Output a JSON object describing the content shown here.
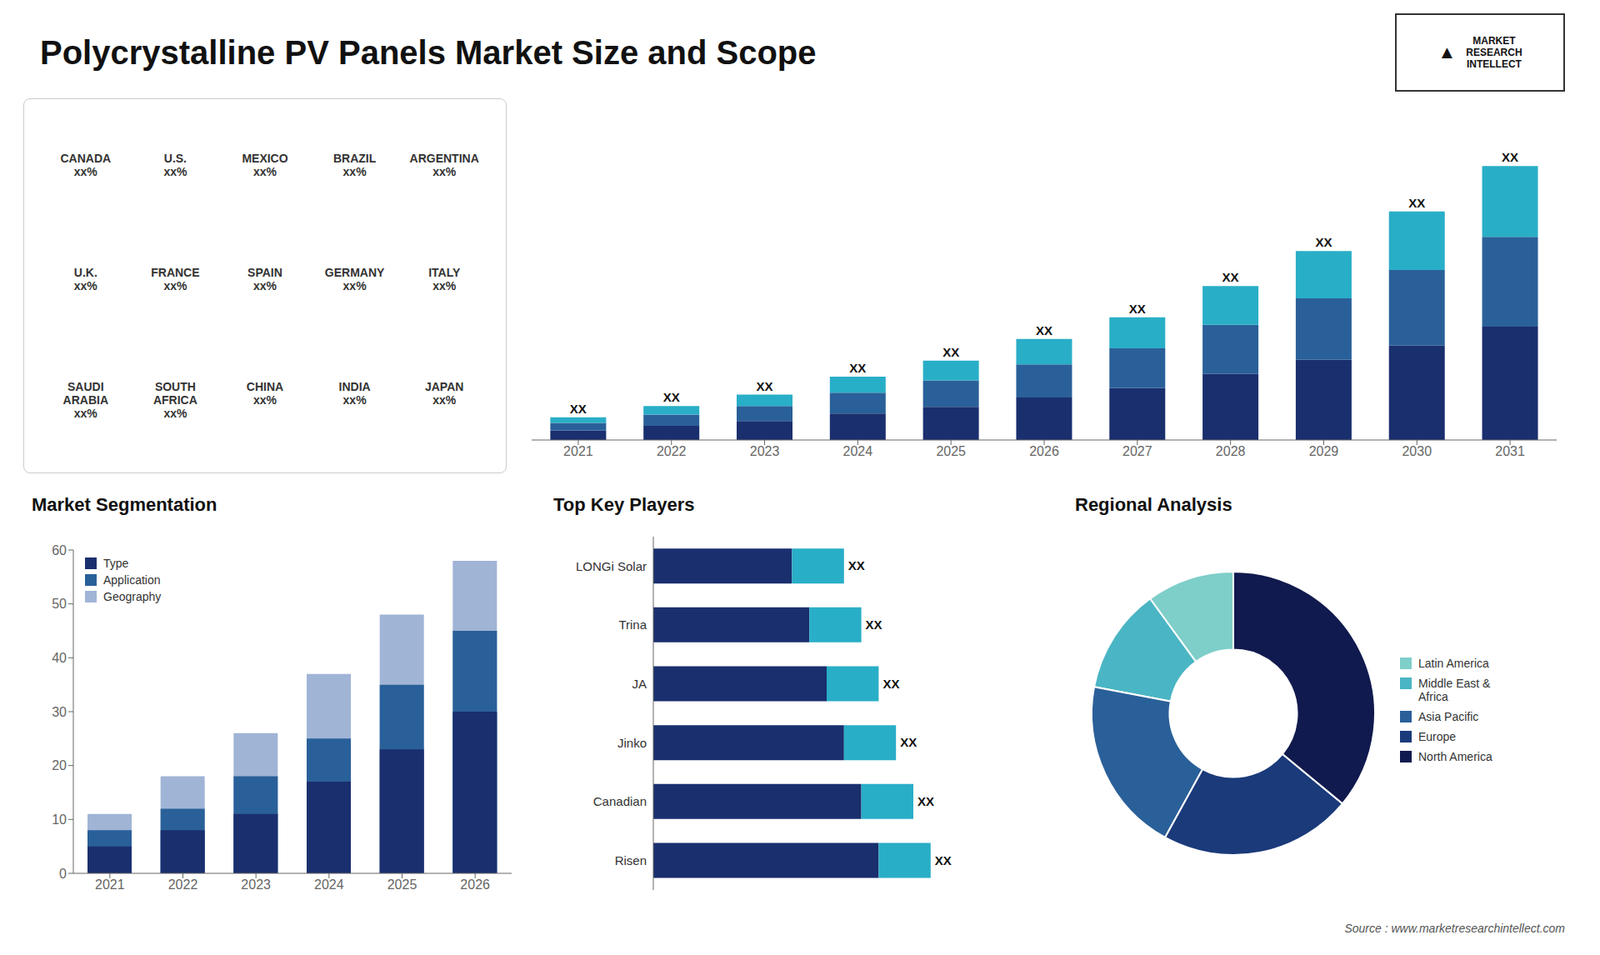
{
  "title": "Polycrystalline PV Panels Market Size and Scope",
  "annotations": [
    "MARKET\nRESEARCH\nINTELLECT",
    "▲",
    "Source : www.marketresearchintellect.com"
  ],
  "chart_data": [
    {
      "type": "bar",
      "stacked": true,
      "categories": [
        "2021",
        "2022",
        "2023",
        "2024",
        "2025",
        "2026",
        "2027",
        "2028",
        "2029",
        "2030",
        "2031"
      ],
      "series": [
        {
          "color": "#1a2f6e",
          "values": [
            1,
            1.5,
            2,
            2.8,
            3.5,
            4.5,
            5.5,
            7,
            8.5,
            10,
            12
          ]
        },
        {
          "color": "#2a6099",
          "values": [
            0.8,
            1.2,
            1.6,
            2.2,
            2.8,
            3.5,
            4.2,
            5.2,
            6.5,
            8,
            9.5
          ]
        },
        {
          "color": "#29aec7",
          "values": [
            0.6,
            0.9,
            1.2,
            1.7,
            2.1,
            2.7,
            3.3,
            4.1,
            5.0,
            6.2,
            7.5
          ]
        }
      ],
      "annotations": [
        "XX",
        "XX",
        "XX",
        "XX",
        "XX",
        "XX",
        "XX",
        "XX",
        "XX",
        "XX",
        "XX"
      ],
      "ylim": [
        0,
        33
      ],
      "grid": false,
      "tick_labels": "x"
    },
    {
      "type": "bar",
      "stacked": false,
      "title": "Market Segmentation",
      "categories": [
        "2021",
        "2022",
        "2023",
        "2024",
        "2025",
        "2026"
      ],
      "series": [
        {
          "name": "Geography",
          "color": "#a0b4d6",
          "values": [
            11,
            18,
            26,
            37,
            48,
            58
          ]
        },
        {
          "name": "Application",
          "color": "#2a6099",
          "values": [
            8,
            12,
            18,
            25,
            35,
            45
          ]
        },
        {
          "name": "Type",
          "color": "#1a2f6e",
          "values": [
            5,
            8,
            11,
            17,
            23,
            30
          ]
        }
      ],
      "ylim": [
        0,
        60
      ],
      "yticks": [
        0,
        10,
        20,
        30,
        40,
        50,
        60
      ],
      "grid": false,
      "legend": "upper left"
    },
    {
      "type": "bar",
      "orientation": "horizontal",
      "stacked": true,
      "title": "Top Key Players",
      "categories": [
        "Risen",
        "Canadian",
        "Jinko",
        "JA",
        "Trina",
        "LONGi Solar"
      ],
      "series": [
        {
          "color": "#1a2f6e",
          "values": [
            6.5,
            6.0,
            5.5,
            5.0,
            4.5,
            4.0
          ]
        },
        {
          "color": "#29aec7",
          "values": [
            1.5,
            1.5,
            1.5,
            1.5,
            1.5,
            1.5
          ]
        }
      ],
      "annotations": [
        "XX",
        "XX",
        "XX",
        "XX",
        "XX",
        "XX"
      ],
      "xlim": [
        0,
        10
      ],
      "grid": false,
      "tick_labels": "y"
    },
    {
      "type": "pie",
      "title": "Regional Analysis",
      "labels": [
        "Latin America",
        "Middle East &\nAfrica",
        "Asia Pacific",
        "Europe",
        "North America"
      ],
      "values": [
        10,
        12,
        20,
        22,
        36
      ],
      "colors": [
        "#7ececa",
        "#4ab5c4",
        "#2a6099",
        "#1a3a7a",
        "#111a4e"
      ],
      "legend": "right"
    },
    {
      "type": "map",
      "annotations": [
        "CANADA\nxx%",
        "U.S.\nxx%",
        "MEXICO\nxx%",
        "BRAZIL\nxx%",
        "ARGENTINA\nxx%",
        "U.K.\nxx%",
        "FRANCE\nxx%",
        "SPAIN\nxx%",
        "GERMANY\nxx%",
        "ITALY\nxx%",
        "SAUDI\nARABIA\nxx%",
        "SOUTH\nAFRICA\nxx%",
        "CHINA\nxx%",
        "INDIA\nxx%",
        "JAPAN\nxx%"
      ]
    }
  ]
}
